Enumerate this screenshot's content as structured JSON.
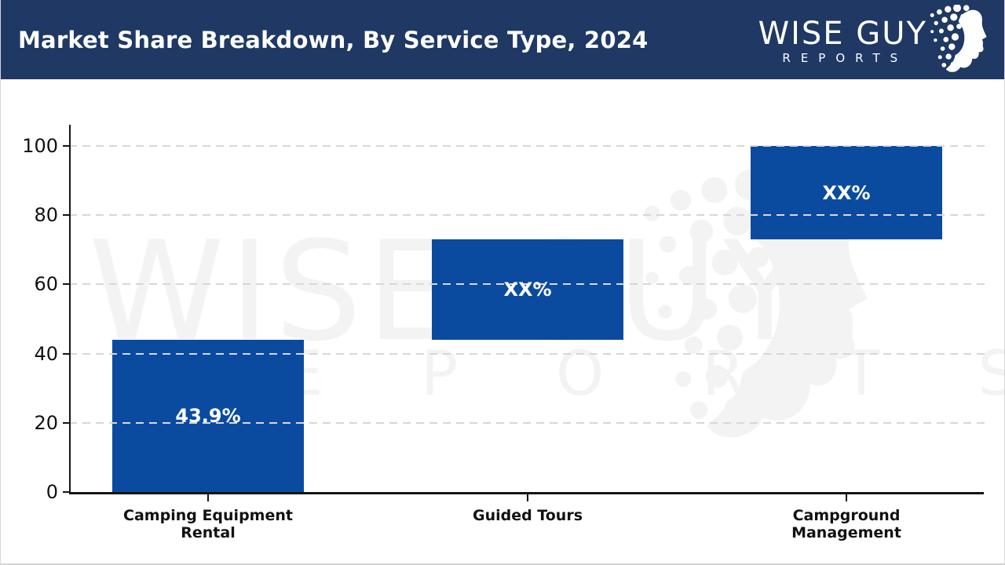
{
  "header": {
    "title": "Market Share Breakdown, By Service Type, 2024",
    "logo": {
      "line1": "WISE GUY",
      "line2": "REPORTS"
    }
  },
  "watermark": {
    "line1": "WISE GUY",
    "line2": "R E P O R T S"
  },
  "chart_data": {
    "type": "bar",
    "subtype": "waterfall",
    "title": "Market Share Breakdown, By Service Type, 2024",
    "categories": [
      "Camping Equipment Rental",
      "Guided Tours",
      "Campground Management"
    ],
    "category_lines": [
      [
        "Camping Equipment",
        "Rental"
      ],
      [
        "Guided Tours"
      ],
      [
        "Campground",
        "Management"
      ]
    ],
    "bars": [
      {
        "category": "Camping Equipment Rental",
        "start": 0,
        "end": 43.9,
        "value_label": "43.9%"
      },
      {
        "category": "Guided Tours",
        "start": 43.9,
        "end": 73,
        "value_label": "XX%"
      },
      {
        "category": "Campground Management",
        "start": 73,
        "end": 100,
        "value_label": "XX%"
      }
    ],
    "ylim": [
      0,
      100
    ],
    "yticks": [
      0,
      20,
      40,
      60,
      80,
      100
    ],
    "xlabel": "",
    "ylabel": "",
    "grid": "horizontal dashed",
    "legend": "none"
  },
  "colors": {
    "header_bg": "#1f3864",
    "bar": "#0a4ba0",
    "bar_label": "#ffffff",
    "gridline": "#d7d7d7",
    "axis": "#141414",
    "watermark": "#f3f3f3",
    "title_text": "#ffffff"
  }
}
